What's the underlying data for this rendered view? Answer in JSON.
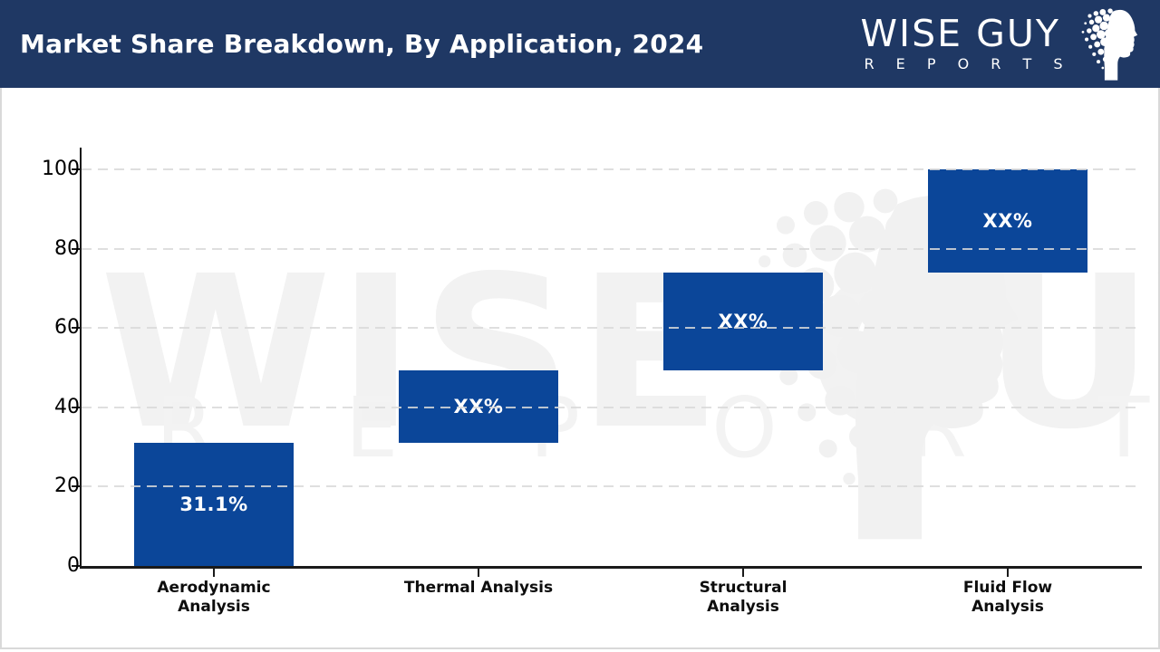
{
  "header": {
    "title": "Market Share Breakdown, By Application, 2024",
    "background": "#1f3864",
    "logo": {
      "line1": "WISE GUY",
      "line2": "R E P O R T S"
    }
  },
  "watermark": {
    "line1": "WISE GUY",
    "line2": "R E P O R T S"
  },
  "chart_data": {
    "type": "bar",
    "subtype": "waterfall",
    "title": "Market Share Breakdown, By Application, 2024",
    "categories": [
      [
        "Aerodynamic",
        "Analysis"
      ],
      [
        "Thermal Analysis"
      ],
      [
        "Structural",
        "Analysis"
      ],
      [
        "Fluid Flow",
        "Analysis"
      ]
    ],
    "segments": [
      {
        "start": 0,
        "end": 31.1,
        "label": "31.1%"
      },
      {
        "start": 31.1,
        "end": 49.3,
        "label": "XX%"
      },
      {
        "start": 49.3,
        "end": 74.0,
        "label": "XX%"
      },
      {
        "start": 74.0,
        "end": 100,
        "label": "XX%"
      }
    ],
    "yticks": [
      0,
      20,
      40,
      60,
      80,
      100
    ],
    "ylim": [
      0,
      100
    ],
    "xlabel": "",
    "ylabel": "",
    "grid": true,
    "legend": "none",
    "style": {
      "bar_color": "#0b4699",
      "bar_label_color": "#ffffff",
      "grid_color": "#d9d9d9",
      "axis_color": "#1a1a1a",
      "watermark_color": "#f2f2f2"
    }
  }
}
